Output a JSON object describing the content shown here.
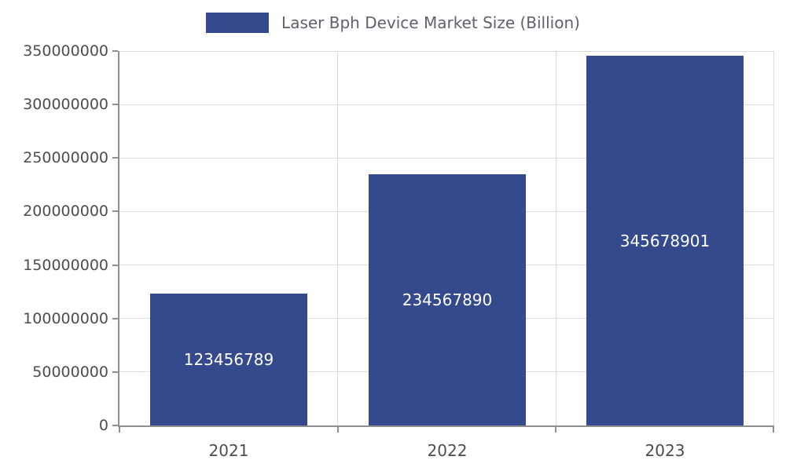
{
  "legend": {
    "label": "Laser Bph Device Market Size (Billion)",
    "swatch_color": "#344a8c"
  },
  "chart_data": {
    "type": "bar",
    "title": "Laser Bph Device Market Size (Billion)",
    "categories": [
      "2021",
      "2022",
      "2023"
    ],
    "values": [
      123456789,
      234567890,
      345678901
    ],
    "data_labels": [
      "123456789",
      "234567890",
      "345678901"
    ],
    "xlabel": "",
    "ylabel": "",
    "ylim": [
      0,
      350000000
    ],
    "ytick_step": 50000000,
    "ytick_labels": [
      "0",
      "50000000",
      "100000000",
      "150000000",
      "200000000",
      "250000000",
      "300000000",
      "350000000"
    ],
    "grid": true,
    "legend_position": "top",
    "bar_color": "#344a8c",
    "bar_label_color": "#ffffff",
    "axis_color": "#8f8f8f",
    "grid_color": "#dcdcdc",
    "tick_label_color": "#4d4d4d"
  }
}
